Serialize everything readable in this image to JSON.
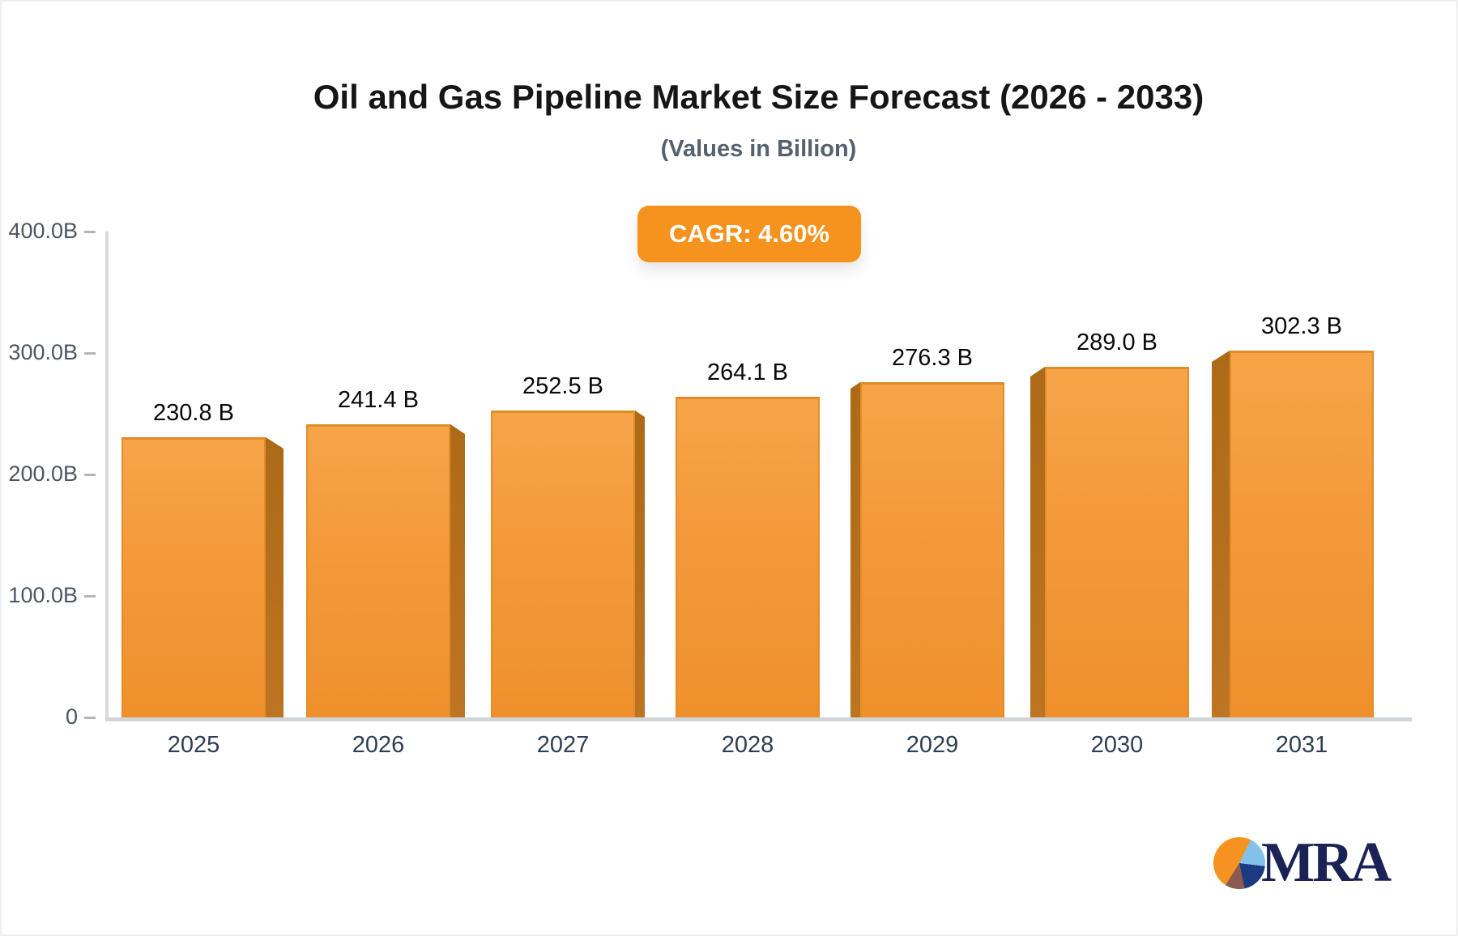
{
  "title": "Oil and Gas Pipeline Market Size Forecast (2026 - 2033)",
  "subtitle": "(Values in Billion)",
  "cagr_badge": "CAGR: 4.60%",
  "logo": {
    "text": "MRA"
  },
  "chart_data": {
    "type": "bar",
    "title": "Oil and Gas Pipeline Market Size Forecast (2026 - 2033)",
    "subtitle": "(Values in Billion)",
    "annotation": "CAGR: 4.60%",
    "categories": [
      "2025",
      "2026",
      "2027",
      "2028",
      "2029",
      "2030",
      "2031"
    ],
    "values": [
      230.8,
      241.4,
      252.5,
      264.1,
      276.3,
      289.0,
      302.3
    ],
    "value_labels": [
      "230.8 B",
      "241.4 B",
      "252.5 B",
      "264.1 B",
      "276.3 B",
      "289.0 B",
      "302.3 B"
    ],
    "unit": "Billion",
    "xlabel": "",
    "ylabel": "",
    "ylim": [
      0,
      400
    ],
    "y_ticks": [
      {
        "label": "400.0B",
        "value": 400
      },
      {
        "label": "300.0B",
        "value": 300
      },
      {
        "label": "200.0B",
        "value": 200
      },
      {
        "label": "100.0B",
        "value": 100
      },
      {
        "label": "0",
        "value": 0
      }
    ],
    "grid": false,
    "legend": "none",
    "bar_style": "3d-beveled",
    "colors": {
      "bar_front_top": "#f7a449",
      "bar_front_bottom": "#ef902c",
      "bar_side": "#b56f1c",
      "badge_background": "#f6921e",
      "badge_text": "#ffffff",
      "axis_line": "#d5d7da",
      "y_tick_text": "#4d5563",
      "x_tick_text": "#2f3e55",
      "value_label_text": "#0a0a0a",
      "logo_navy": "#1b2356",
      "logo_light_blue": "#82c2ea",
      "logo_orange": "#f59222",
      "logo_maroon": "#8d5a52"
    }
  }
}
